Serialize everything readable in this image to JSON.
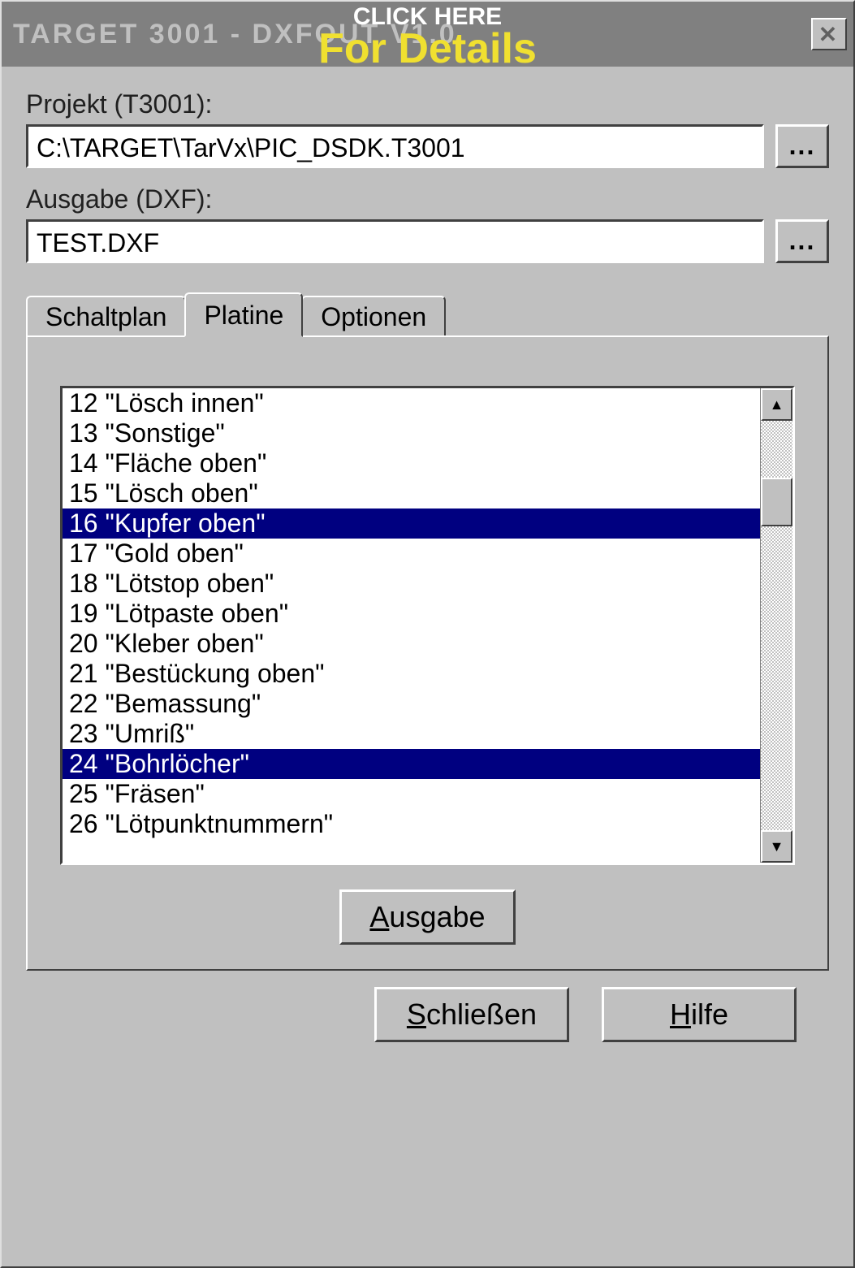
{
  "window": {
    "title": "TARGET 3001 - DXFOUT V1.0",
    "close_glyph": "✕"
  },
  "overlay": {
    "line1": "CLICK HERE",
    "line2": "For Details",
    "line1_color": "#ffffff",
    "line2_color": "#f0e030"
  },
  "fields": {
    "project_label": "Projekt (T3001):",
    "project_value": "C:\\TARGET\\TarVx\\PIC_DSDK.T3001",
    "output_label": "Ausgabe (DXF):",
    "output_value": "TEST.DXF",
    "browse_label": "..."
  },
  "tabs": {
    "items": [
      {
        "label": "Schaltplan",
        "active": false
      },
      {
        "label": "Platine",
        "active": true
      },
      {
        "label": "Optionen",
        "active": false
      }
    ],
    "active_index": 1
  },
  "listbox": {
    "items": [
      {
        "text": "12 \"Lösch innen\"",
        "selected": false
      },
      {
        "text": "13 \"Sonstige\"",
        "selected": false
      },
      {
        "text": "14 \"Fläche oben\"",
        "selected": false
      },
      {
        "text": "15 \"Lösch oben\"",
        "selected": false
      },
      {
        "text": "16 \"Kupfer oben\"",
        "selected": true
      },
      {
        "text": "17 \"Gold oben\"",
        "selected": false
      },
      {
        "text": "18 \"Lötstop oben\"",
        "selected": false
      },
      {
        "text": "19 \"Lötpaste oben\"",
        "selected": false
      },
      {
        "text": "20 \"Kleber oben\"",
        "selected": false
      },
      {
        "text": "21 \"Bestückung oben\"",
        "selected": false
      },
      {
        "text": "22 \"Bemassung\"",
        "selected": false
      },
      {
        "text": "23 \"Umriß\"",
        "selected": false
      },
      {
        "text": "24 \"Bohrlöcher\"",
        "selected": true
      },
      {
        "text": "25 \"Fräsen\"",
        "selected": false
      },
      {
        "text": "26 \"Lötpunktnummern\"",
        "selected": false
      }
    ],
    "scroll": {
      "up_glyph": "▲",
      "down_glyph": "▼",
      "thumb_pos_pct": 14,
      "thumb_height_pct": 12
    }
  },
  "buttons": {
    "ausgabe": "Ausgabe",
    "ausgabe_ul_index": 0,
    "schliessen": "Schließen",
    "schliessen_ul_index": 0,
    "hilfe": "Hilfe",
    "hilfe_ul_index": 0
  },
  "colors": {
    "face": "#c0c0c0",
    "highlight": "#000080",
    "text": "#000000",
    "titlebar_bg": "#808080",
    "titlebar_fg": "#c0c0c0"
  }
}
